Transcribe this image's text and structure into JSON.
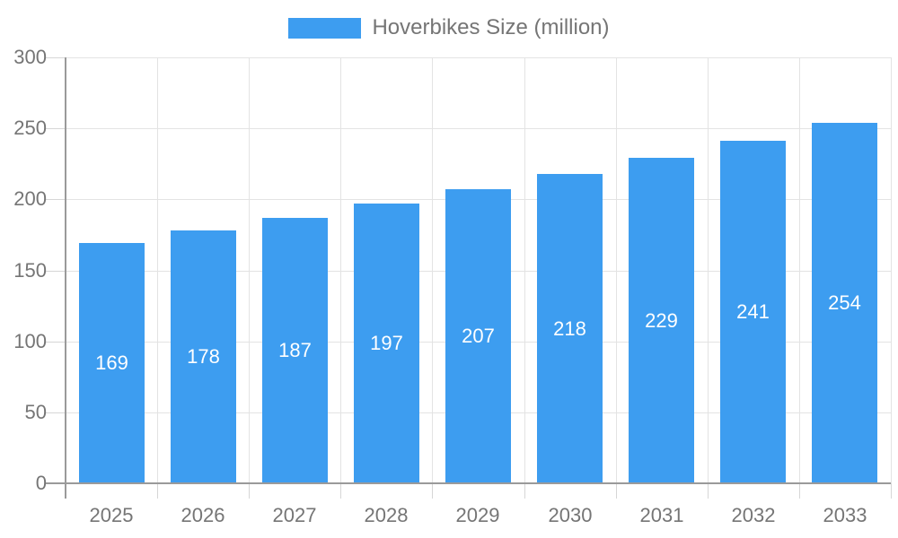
{
  "chart_data": {
    "type": "bar",
    "title": "",
    "xlabel": "",
    "ylabel": "",
    "categories": [
      "2025",
      "2026",
      "2027",
      "2028",
      "2029",
      "2030",
      "2031",
      "2032",
      "2033"
    ],
    "series": [
      {
        "name": "Hoverbikes Size (million)",
        "values": [
          169,
          178,
          187,
          197,
          207,
          218,
          229,
          241,
          254
        ]
      }
    ],
    "bar_value_labels": [
      "169",
      "178",
      "187",
      "197",
      "207",
      "218",
      "229",
      "241",
      "254"
    ],
    "ylim": [
      0,
      300
    ],
    "yticks": [
      0,
      50,
      100,
      150,
      200,
      250,
      300
    ],
    "grid": true,
    "legend_position": "top",
    "colors": {
      "bar": "#3D9DF0",
      "bar_label": "#FFFFFF",
      "axis_text": "#757575",
      "legend_text": "#757575",
      "gridline": "#E3E3E3",
      "tick": "#D6D6D6",
      "axis_line": "#9A9A9A",
      "background": "#FFFFFF"
    }
  }
}
